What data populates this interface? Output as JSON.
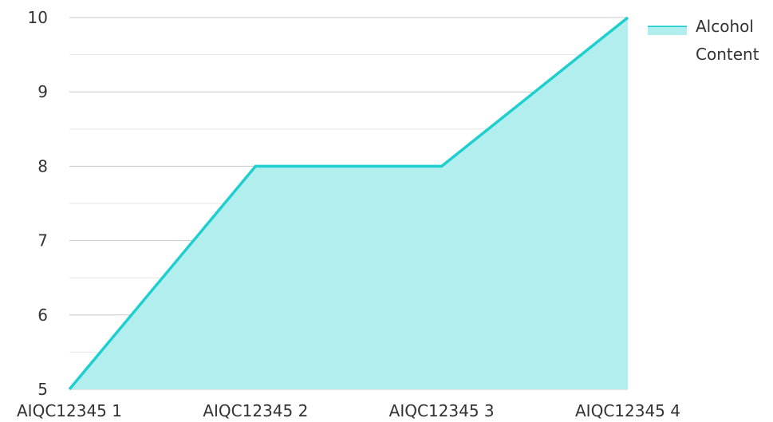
{
  "chart_data": {
    "type": "area",
    "categories": [
      "AIQC12345 1",
      "AIQC12345 2",
      "AIQC12345 3",
      "AIQC12345 4"
    ],
    "series": [
      {
        "name": "Alcohol Content",
        "values": [
          5,
          8,
          8,
          10
        ],
        "line_color": "#1fcfcf",
        "fill_color": "#b2eeee"
      }
    ],
    "y_ticks": [
      "5",
      "6",
      "7",
      "8",
      "9",
      "10"
    ],
    "ylim": [
      5,
      10
    ],
    "minor_gridlines": true,
    "grid": true,
    "legend_position": "top-right",
    "legend_lines": [
      "Alcohol",
      "Content"
    ]
  }
}
